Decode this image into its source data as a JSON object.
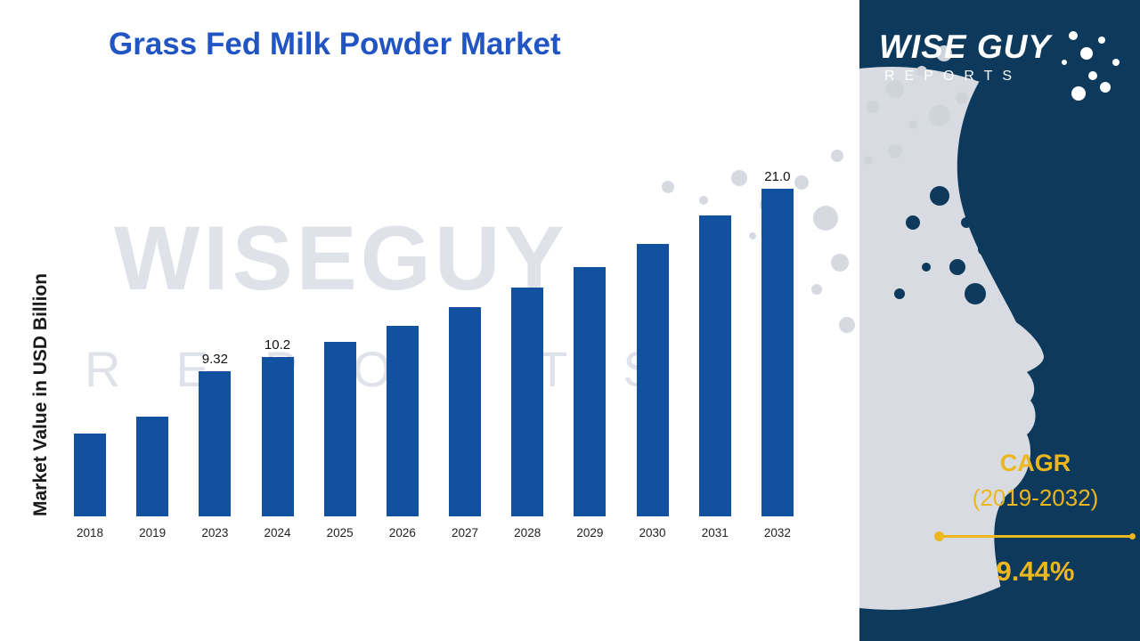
{
  "title": "Grass Fed Milk Powder Market",
  "y_axis_label": "Market Value in USD Billion",
  "watermark": {
    "line1": "WISEGUY",
    "line2": "REPORTS"
  },
  "logo": {
    "name": "WISE GUY",
    "sub": "REPORTS"
  },
  "panel": {
    "cagr_label": "CAGR",
    "cagr_range": "(2019-2032)",
    "cagr_value": "9.44%"
  },
  "colors": {
    "bar": "#11519f",
    "title": "#2155c4",
    "panel_bg": "#0d3a5c",
    "accent_yellow": "#ecb61e",
    "watermark": "#dfe2e8"
  },
  "chart_data": {
    "type": "bar",
    "title": "Grass Fed Milk Powder Market",
    "xlabel": "",
    "ylabel": "Market Value in USD Billion",
    "unit": "USD Billion",
    "categories": [
      "2018",
      "2019",
      "2023",
      "2024",
      "2025",
      "2026",
      "2027",
      "2028",
      "2029",
      "2030",
      "2031",
      "2032"
    ],
    "values": [
      5.3,
      6.4,
      9.32,
      10.2,
      11.2,
      12.2,
      13.4,
      14.7,
      16.0,
      17.5,
      19.3,
      21.0
    ],
    "labeled_values": {
      "2023": "9.32",
      "2024": "10.2",
      "2032": "21.0"
    },
    "ylim": [
      0,
      22
    ],
    "grid": false,
    "legend": false,
    "annotations": {
      "cagr": "9.44%",
      "cagr_period": "(2019-2032)"
    }
  }
}
